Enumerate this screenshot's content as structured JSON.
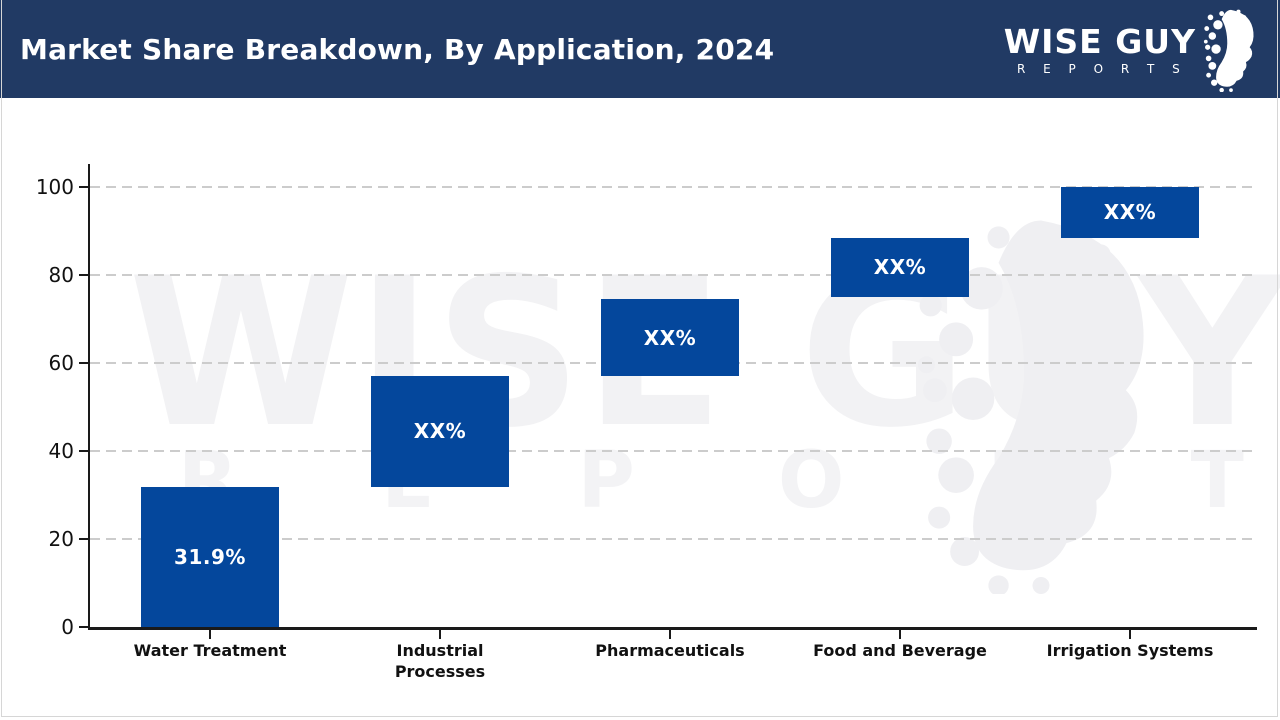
{
  "header": {
    "title": "Market Share Breakdown, By Application, 2024",
    "logo": {
      "name": "WISE GUY",
      "sub": "R E P O R T S"
    }
  },
  "watermark": {
    "name": "WISE GUY",
    "sub": "R E P O R T S"
  },
  "chart_data": {
    "type": "bar",
    "subtype": "floating-waterfall",
    "title": "Market Share Breakdown, By Application, 2024",
    "categories": [
      "Water Treatment",
      "Industrial\nProcesses",
      "Pharmaceuticals",
      "Food and Beverage",
      "Irrigation Systems"
    ],
    "segments": [
      {
        "category": "Water Treatment",
        "start": 0,
        "end": 31.9,
        "label": "31.9%"
      },
      {
        "category": "Industrial Processes",
        "start": 31.9,
        "end": 57,
        "label": "XX%"
      },
      {
        "category": "Pharmaceuticals",
        "start": 57,
        "end": 74.5,
        "label": "XX%"
      },
      {
        "category": "Food and Beverage",
        "start": 75,
        "end": 88.5,
        "label": "XX%"
      },
      {
        "category": "Irrigation Systems",
        "start": 88.5,
        "end": 100,
        "label": "XX%"
      }
    ],
    "ylim": [
      0,
      100
    ],
    "yticks": [
      0,
      20,
      40,
      60,
      80,
      100
    ],
    "xlabel": "",
    "ylabel": "",
    "grid": "horizontal-dashed",
    "legend": "none",
    "bar_color": "#04479c",
    "bar_label_color": "#ffffff"
  },
  "colors": {
    "header_bg": "#213a64",
    "page_bg": "#ffffff",
    "axis": "#1a1a1a",
    "gridline": "#cccccc",
    "watermark": "#f2f2f4",
    "border": "#d6d6d6"
  }
}
